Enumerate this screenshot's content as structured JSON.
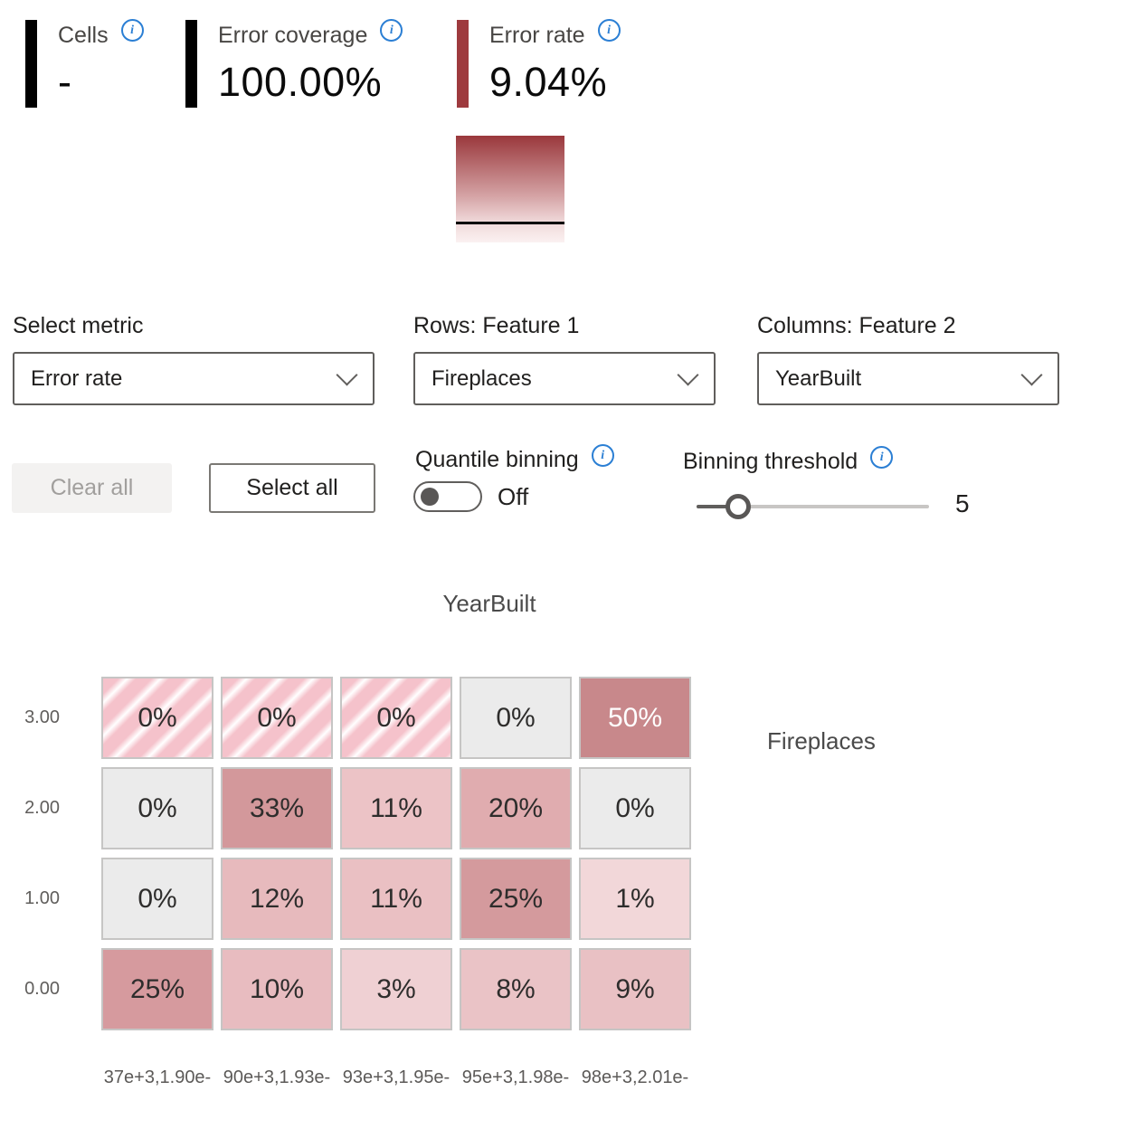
{
  "colors": {
    "accent_red": "#9e3a3e",
    "metric_bar_black": "#000000",
    "legend_top": "#9a383c",
    "legend_bottom": "#fbf1f1",
    "info_blue": "#2b7fd4",
    "cell_border": "#c6c5c4",
    "striped_pink": "#f5c2cb",
    "disabled_button_bg": "#f3f2f1",
    "disabled_button_text": "#a19f9d"
  },
  "metrics": [
    {
      "label": "Cells",
      "value": "-",
      "bar_color": "#000000",
      "info_icon": "info-icon"
    },
    {
      "label": "Error coverage",
      "value": "100.00%",
      "bar_color": "#000000",
      "info_icon": "info-icon"
    },
    {
      "label": "Error rate",
      "value": "9.04%",
      "bar_color": "#9e3a3e",
      "info_icon": "info-icon"
    }
  ],
  "controls": {
    "select_metric": {
      "label": "Select metric",
      "value": "Error rate"
    },
    "rows_feature": {
      "label": "Rows: Feature 1",
      "value": "Fireplaces"
    },
    "cols_feature": {
      "label": "Columns: Feature 2",
      "value": "YearBuilt"
    },
    "clear_all_label": "Clear all",
    "select_all_label": "Select all",
    "quantile_binning": {
      "label": "Quantile binning",
      "state": "Off"
    },
    "binning_threshold": {
      "label": "Binning threshold",
      "value": "5"
    }
  },
  "heatmap": {
    "x_title": "YearBuilt",
    "y_title": "Fireplaces",
    "row_labels": [
      "3.00",
      "2.00",
      "1.00",
      "0.00"
    ],
    "col_labels": [
      "37e+3,1.90e-",
      "90e+3,1.93e-",
      "93e+3,1.95e-",
      "95e+3,1.98e-",
      "98e+3,2.01e-"
    ],
    "cells": [
      [
        {
          "value": "0%",
          "pattern": "striped",
          "color": "#f5c2cb",
          "text_color": "#2e2d2c"
        },
        {
          "value": "0%",
          "pattern": "striped",
          "color": "#f5c2cb",
          "text_color": "#2e2d2c"
        },
        {
          "value": "0%",
          "pattern": "striped",
          "color": "#f5c2cb",
          "text_color": "#2e2d2c"
        },
        {
          "value": "0%",
          "pattern": "solid",
          "color": "#ebebeb",
          "text_color": "#2e2d2c"
        },
        {
          "value": "50%",
          "pattern": "solid",
          "color": "#c8888b",
          "text_color": "#ffffff"
        }
      ],
      [
        {
          "value": "0%",
          "pattern": "solid",
          "color": "#ebebeb",
          "text_color": "#2e2d2c"
        },
        {
          "value": "33%",
          "pattern": "solid",
          "color": "#d3989b",
          "text_color": "#2e2d2c"
        },
        {
          "value": "11%",
          "pattern": "solid",
          "color": "#ecc3c6",
          "text_color": "#2e2d2c"
        },
        {
          "value": "20%",
          "pattern": "solid",
          "color": "#e0acaf",
          "text_color": "#2e2d2c"
        },
        {
          "value": "0%",
          "pattern": "solid",
          "color": "#ebebeb",
          "text_color": "#2e2d2c"
        }
      ],
      [
        {
          "value": "0%",
          "pattern": "solid",
          "color": "#ebebeb",
          "text_color": "#2e2d2c"
        },
        {
          "value": "12%",
          "pattern": "solid",
          "color": "#e7babd",
          "text_color": "#2e2d2c"
        },
        {
          "value": "11%",
          "pattern": "solid",
          "color": "#eac0c3",
          "text_color": "#2e2d2c"
        },
        {
          "value": "25%",
          "pattern": "solid",
          "color": "#d49a9d",
          "text_color": "#2e2d2c"
        },
        {
          "value": "1%",
          "pattern": "solid",
          "color": "#f2d7d9",
          "text_color": "#2e2d2c"
        }
      ],
      [
        {
          "value": "25%",
          "pattern": "solid",
          "color": "#d69a9e",
          "text_color": "#2e2d2c"
        },
        {
          "value": "10%",
          "pattern": "solid",
          "color": "#e8bcc0",
          "text_color": "#2e2d2c"
        },
        {
          "value": "3%",
          "pattern": "solid",
          "color": "#efd0d3",
          "text_color": "#2e2d2c"
        },
        {
          "value": "8%",
          "pattern": "solid",
          "color": "#eac3c6",
          "text_color": "#2e2d2c"
        },
        {
          "value": "9%",
          "pattern": "solid",
          "color": "#e9c1c4",
          "text_color": "#2e2d2c"
        }
      ]
    ]
  },
  "chart_data": {
    "type": "heatmap",
    "title": "",
    "xlabel": "YearBuilt",
    "ylabel": "Fireplaces",
    "x_tick_labels": [
      "37e+3,1.90e-",
      "90e+3,1.93e-",
      "93e+3,1.95e-",
      "95e+3,1.98e-",
      "98e+3,2.01e-"
    ],
    "y_tick_labels": [
      "3.00",
      "2.00",
      "1.00",
      "0.00"
    ],
    "values_percent": [
      [
        0,
        0,
        0,
        0,
        50
      ],
      [
        0,
        33,
        11,
        20,
        0
      ],
      [
        0,
        12,
        11,
        25,
        1
      ],
      [
        25,
        10,
        3,
        8,
        9
      ]
    ],
    "striped_cells_row_col": [
      [
        0,
        0
      ],
      [
        0,
        1
      ],
      [
        0,
        2
      ]
    ],
    "legend": {
      "orientation": "vertical-gradient",
      "top_color": "#9a383c",
      "bottom_color": "#fbf1f1",
      "baseline_marker_position_pct": 81
    }
  }
}
